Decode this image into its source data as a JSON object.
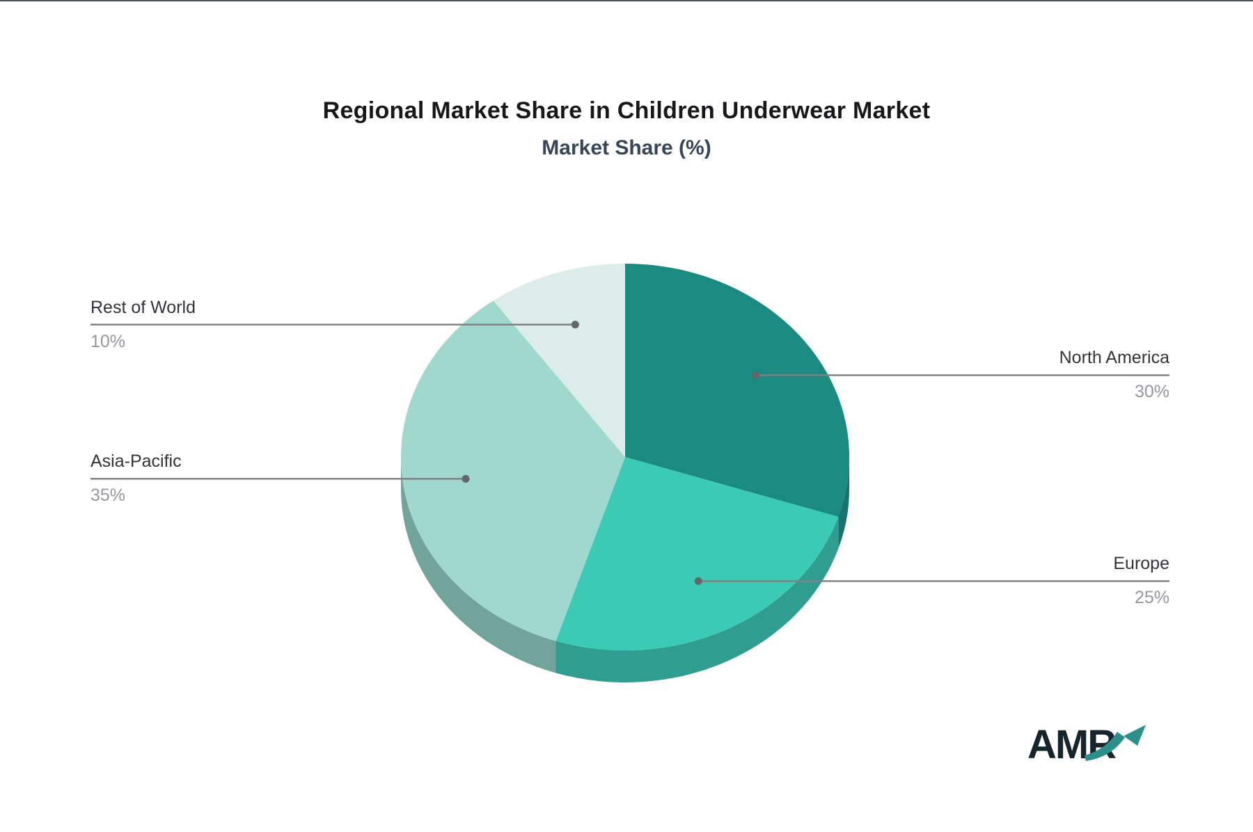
{
  "page": {
    "background": "#ffffff",
    "top_border_color": "#4b5258"
  },
  "header": {
    "title": "Regional Market Share in Children Underwear Market",
    "subtitle": "Market Share (%)"
  },
  "chart_data": {
    "type": "pie",
    "title": "Regional Market Share in Children Underwear Market",
    "subtitle": "Market Share (%)",
    "is_3d": true,
    "start_angle": "12-oclock",
    "direction": "clockwise",
    "legend": "none",
    "labels_layout": "callout-lines-with-dots",
    "segments": [
      {
        "label": "North America",
        "value": 30,
        "pct_label": "30%",
        "color": "#1b8a80",
        "side_color": "#15756e",
        "callout_side": "right"
      },
      {
        "label": "Europe",
        "value": 25,
        "pct_label": "25%",
        "color": "#3bcbb5",
        "side_color": "#2f9e91",
        "callout_side": "right"
      },
      {
        "label": "Asia-Pacific",
        "value": 35,
        "pct_label": "35%",
        "color": "#a1d8cd",
        "side_color": "#72a49c",
        "callout_side": "left"
      },
      {
        "label": "Rest of World",
        "value": 10,
        "pct_label": "10%",
        "color": "#dcece8",
        "side_color": "#b9cdc9",
        "callout_side": "left"
      }
    ]
  },
  "callout_style": {
    "line_color": "#7f8184",
    "dot_color": "#63666a",
    "name_color": "#323438",
    "pct_color": "#95989c"
  },
  "logo": {
    "text": "AMR",
    "text_color": "#16242c",
    "arrow_color": "#2d8f89"
  }
}
